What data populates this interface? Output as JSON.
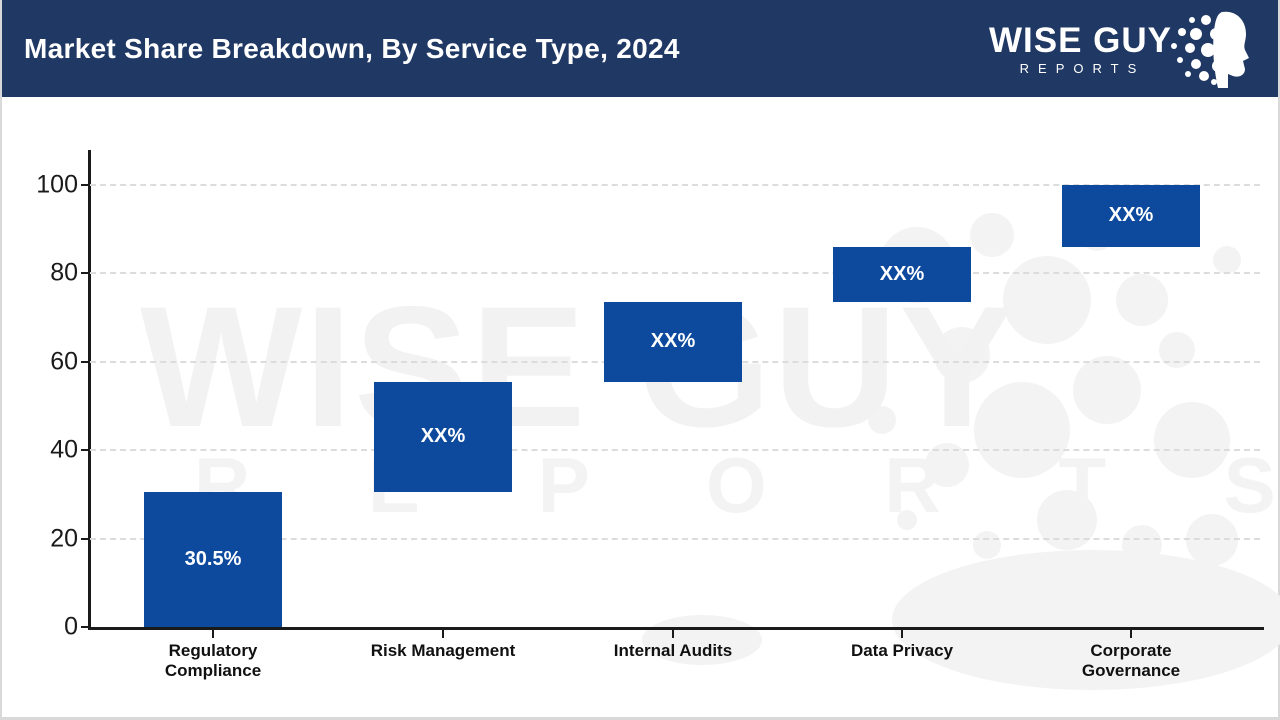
{
  "header": {
    "title": "Market Share Breakdown, By Service Type, 2024",
    "logo": {
      "line1": "WISE GUY",
      "line2": "REPORTS"
    }
  },
  "watermark": {
    "line1": "WISE GUY",
    "line2": "REPORTS"
  },
  "chart_data": {
    "type": "bar",
    "subtype": "waterfall",
    "title": "Market Share Breakdown, By Service Type, 2024",
    "categories": [
      "Regulatory Compliance",
      "Risk Management",
      "Internal Audits",
      "Data Privacy",
      "Corporate Governance"
    ],
    "series": [
      {
        "name": "Market Share",
        "segments": [
          {
            "category": "Regulatory Compliance",
            "start": 0,
            "end": 30.5
          },
          {
            "category": "Risk Management",
            "start": 30.5,
            "end": 55.5
          },
          {
            "category": "Internal Audits",
            "start": 55.5,
            "end": 73.5
          },
          {
            "category": "Data Privacy",
            "start": 73.5,
            "end": 86
          },
          {
            "category": "Corporate Governance",
            "start": 86,
            "end": 100
          }
        ]
      }
    ],
    "bar_labels": [
      "30.5%",
      "XX%",
      "XX%",
      "XX%",
      "XX%"
    ],
    "yticks": [
      0,
      20,
      40,
      60,
      80,
      100
    ],
    "ylim": [
      0,
      105
    ],
    "xlabel": "",
    "ylabel": "",
    "grid": "horizontal-dashed",
    "legend": "none",
    "bar_color": "#0d4a9e",
    "bar_label_color": "#ffffff"
  },
  "colors": {
    "header_bg": "#203864",
    "bar": "#0d4a9e",
    "grid": "#dcdcdc",
    "axis": "#1a1a1a",
    "watermark": "#f2f2f2"
  }
}
